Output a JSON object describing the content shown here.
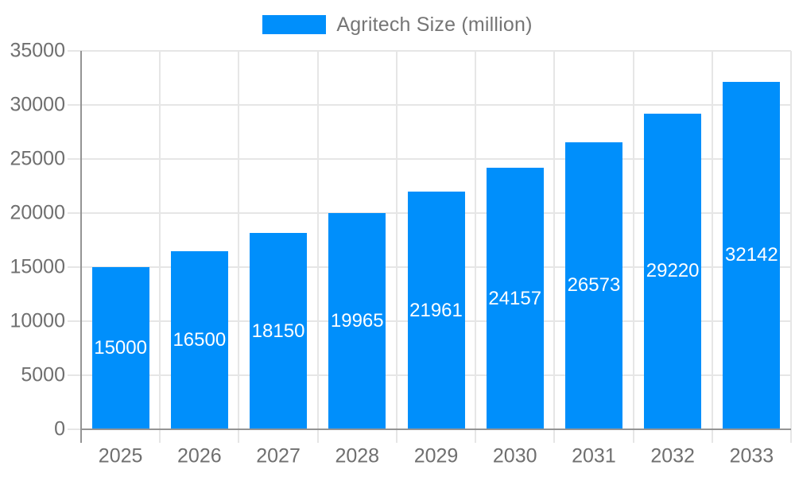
{
  "chart_data": {
    "type": "bar",
    "title": "",
    "legend": {
      "label": "Agritech Size (million)",
      "position": "top"
    },
    "categories": [
      "2025",
      "2026",
      "2027",
      "2028",
      "2029",
      "2030",
      "2031",
      "2032",
      "2033"
    ],
    "series": [
      {
        "name": "Agritech Size (million)",
        "values": [
          15000,
          16500,
          18150,
          19965,
          21961,
          24157,
          26573,
          29220,
          32142
        ]
      }
    ],
    "value_labels": [
      "15000",
      "16500",
      "18150",
      "19965",
      "21961",
      "24157",
      "26573",
      "29220",
      "32142"
    ],
    "ylim": [
      0,
      35000
    ],
    "yticks": [
      0,
      5000,
      10000,
      15000,
      20000,
      25000,
      30000,
      35000
    ],
    "grid": {
      "horizontal": true,
      "vertical": true
    },
    "colors": {
      "bar": "#008FFB",
      "value_label": "#FFFFFF",
      "axis_text": "#6F6F6F",
      "legend_text": "#757575",
      "gridline": "#E6E6E6",
      "axis_line": "#949494",
      "background": "#FFFFFF"
    }
  }
}
